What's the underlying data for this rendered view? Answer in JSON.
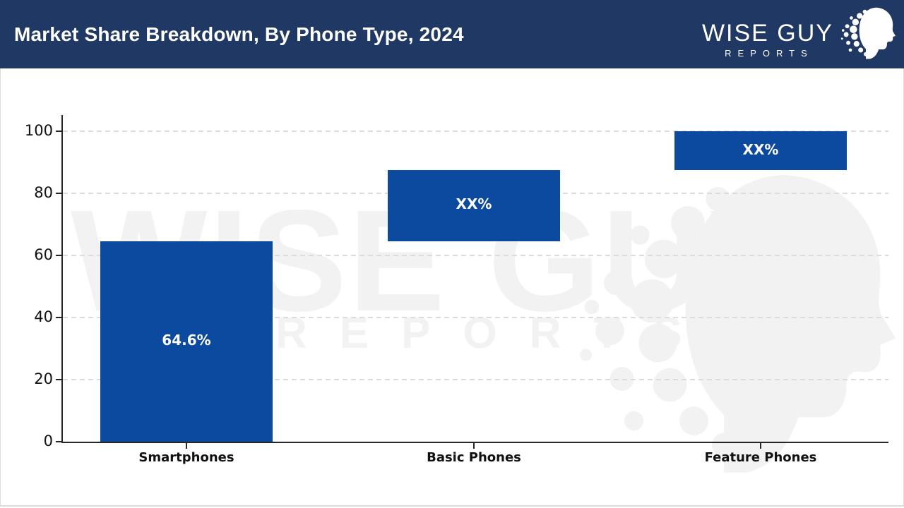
{
  "header": {
    "title": "Market Share Breakdown, By Phone Type, 2024",
    "logo": {
      "line1": "WISE GUY",
      "line2": "REPORTS"
    }
  },
  "watermark": {
    "line1": "WISE GUY",
    "line2": "REPORTS"
  },
  "chart_data": {
    "type": "bar",
    "subtype": "waterfall",
    "title": "Market Share Breakdown, By Phone Type, 2024",
    "categories": [
      "Smartphones",
      "Basic Phones",
      "Feature Phones"
    ],
    "segments": [
      {
        "category": "Smartphones",
        "start": 0,
        "end": 64.6,
        "label": "64.6%"
      },
      {
        "category": "Basic Phones",
        "start": 64.6,
        "end": 87.5,
        "label": "XX%"
      },
      {
        "category": "Feature Phones",
        "start": 87.5,
        "end": 100,
        "label": "XX%"
      }
    ],
    "yticks": [
      0,
      20,
      40,
      60,
      80,
      100
    ],
    "ylim": [
      0,
      105
    ],
    "xlabel": "",
    "ylabel": "",
    "grid": "dashed-horizontal",
    "legend": "none"
  },
  "colors": {
    "header_bg": "#203864",
    "bar": "#0b4a9e",
    "grid": "#dcdcdc",
    "axis": "#262626",
    "tick_label": "#111111",
    "bar_label": "#ffffff",
    "watermark": "#f2f2f2",
    "edge": "#dcdcdc"
  }
}
